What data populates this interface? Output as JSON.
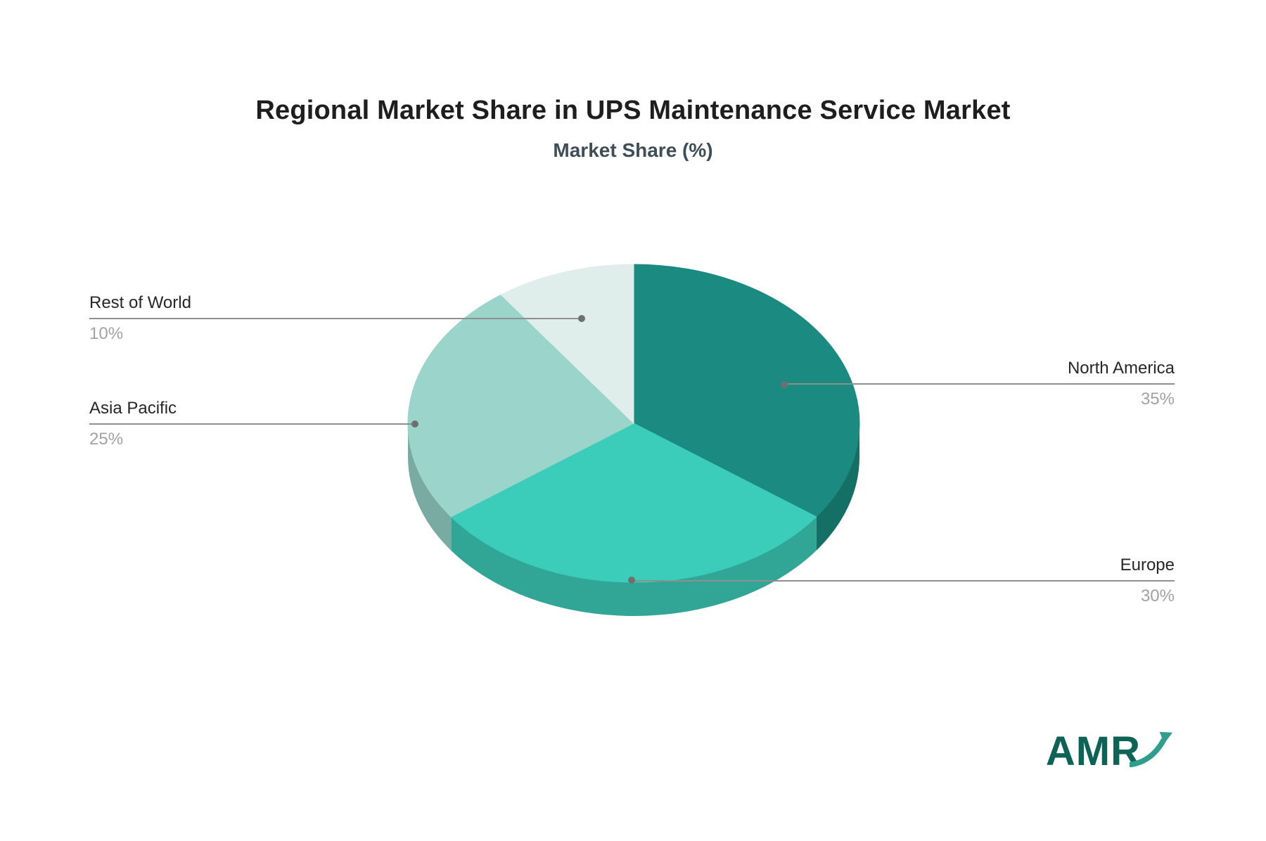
{
  "title": "Regional Market Share in UPS Maintenance Service Market",
  "subtitle": "Market Share (%)",
  "logo": {
    "text": "AMR"
  },
  "colors": {
    "background": "#ffffff",
    "title_text": "#1e1e1e",
    "subtitle_text": "#3e4e58",
    "label_text": "#272727",
    "percent_text": "#a2a2a2",
    "leader_line": "#8f8f8f",
    "leader_dot": "#6f6f6f",
    "logo_text": "#0e6357",
    "logo_arrow": "#2f9e8d"
  },
  "chart_data": {
    "type": "pie",
    "style": "3d",
    "title": "Regional Market Share in UPS Maintenance Service Market",
    "subtitle": "Market Share (%)",
    "unit": "%",
    "start_angle_deg": 0,
    "direction": "clockwise",
    "legend": "none",
    "slices": [
      {
        "label": "North America",
        "value": 35,
        "display": "35%",
        "color": "#1b8a80",
        "side_color": "#146f65"
      },
      {
        "label": "Europe",
        "value": 30,
        "display": "30%",
        "color": "#3bccba",
        "side_color": "#32a696"
      },
      {
        "label": "Asia Pacific",
        "value": 25,
        "display": "25%",
        "color": "#9bd4cb",
        "side_color": "#7aaba3"
      },
      {
        "label": "Rest of World",
        "value": 10,
        "display": "10%",
        "color": "#dfedeb",
        "side_color": "#c8dcd9"
      }
    ]
  }
}
